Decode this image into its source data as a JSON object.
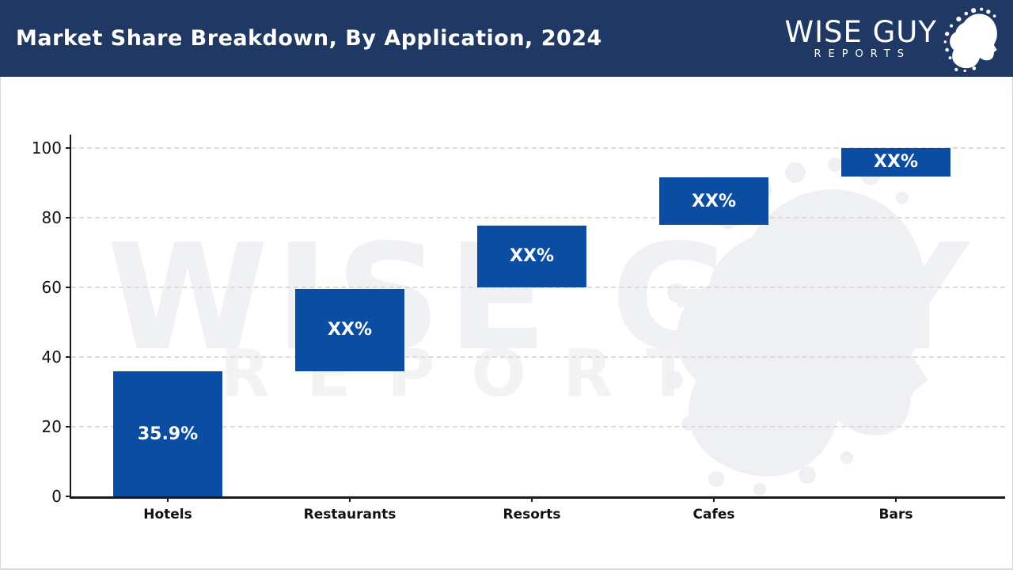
{
  "header": {
    "title": "Market Share Breakdown, By Application, 2024",
    "bg_color": "#1F3864",
    "logo": {
      "line1": "WISE GUY",
      "line2": "REPORTS"
    }
  },
  "watermark": {
    "line1": "WISE GUY",
    "line2": "REPORTS"
  },
  "chart_data": {
    "type": "bar",
    "subtype": "floating-waterfall",
    "title": "Market Share Breakdown, By Application, 2024",
    "xlabel": "",
    "ylabel": "",
    "ylim": [
      0,
      100
    ],
    "yticks": [
      0,
      20,
      40,
      60,
      80,
      100
    ],
    "grid": "horizontal-dashed",
    "legend": "none",
    "bar_color": "#0B4DA2",
    "categories": [
      "Hotels",
      "Restaurants",
      "Resorts",
      "Cafes",
      "Bars"
    ],
    "segments": [
      {
        "category": "Hotels",
        "start": 0,
        "end": 35.9,
        "label": "35.9%"
      },
      {
        "category": "Restaurants",
        "start": 36.0,
        "end": 59.5,
        "label": "XX%"
      },
      {
        "category": "Resorts",
        "start": 60.1,
        "end": 77.8,
        "label": "XX%"
      },
      {
        "category": "Cafes",
        "start": 77.9,
        "end": 91.6,
        "label": "XX%"
      },
      {
        "category": "Bars",
        "start": 91.9,
        "end": 100,
        "label": "XX%"
      }
    ]
  }
}
